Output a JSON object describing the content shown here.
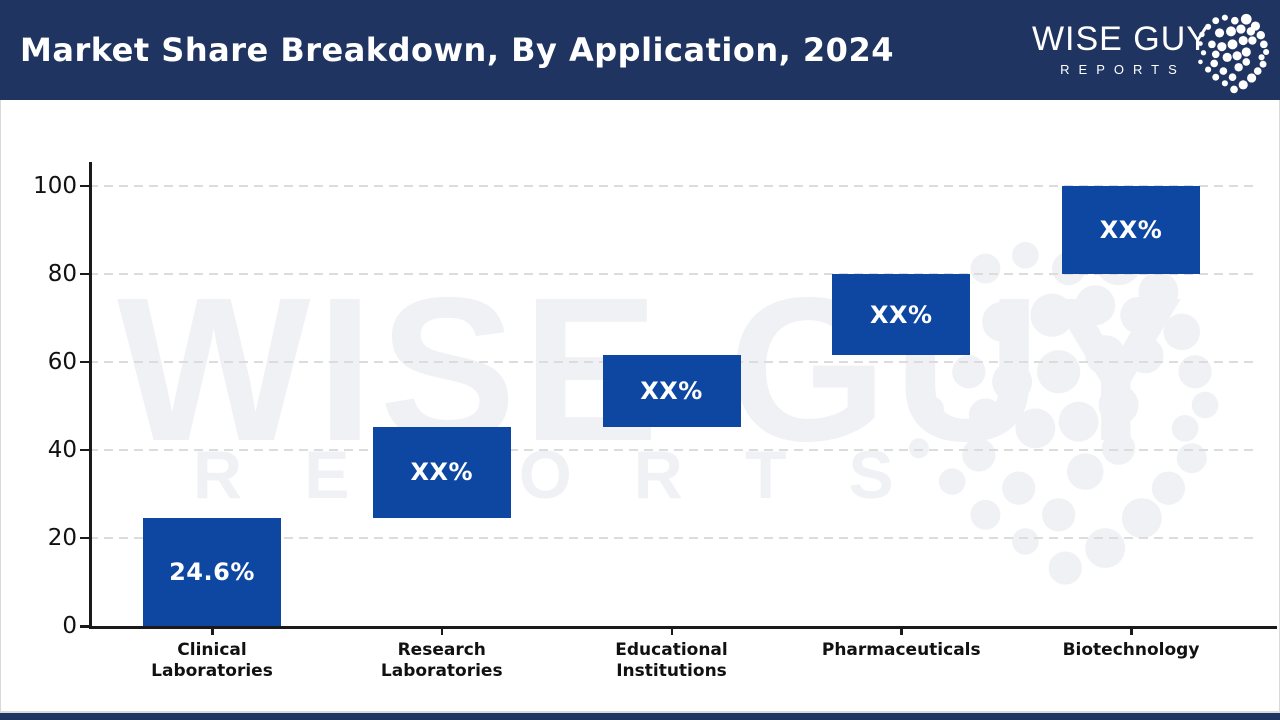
{
  "header": {
    "title": "Market Share Breakdown, By Application, 2024",
    "logo": {
      "line1": "WISE GUY",
      "line2": "REPORTS"
    }
  },
  "watermark": {
    "line1": "WISE GUY",
    "line2": "REPORTS"
  },
  "colors": {
    "header_bg": "#1f3460",
    "bar": "#0d47a1",
    "gridline": "#dcdcdc",
    "axis": "#1a1a1a",
    "watermark": "#f0f1f4",
    "title_text": "#ffffff",
    "bar_label_text": "#ffffff"
  },
  "chart_data": {
    "type": "bar",
    "variant": "floating-waterfall",
    "title": "Market Share Breakdown, By Application, 2024",
    "xlabel": "",
    "ylabel": "",
    "ylim": [
      0,
      105
    ],
    "yticks": [
      0,
      20,
      40,
      60,
      80,
      100
    ],
    "grid": "horizontal-dashed",
    "legend": "none",
    "categories": [
      "Clinical Laboratories",
      "Research Laboratories",
      "Educational Institutions",
      "Pharmaceuticals",
      "Biotechnology"
    ],
    "category_lines": [
      [
        "Clinical",
        "Laboratories"
      ],
      [
        "Research",
        "Laboratories"
      ],
      [
        "Educational",
        "Institutions"
      ],
      [
        "Pharmaceuticals"
      ],
      [
        "Biotechnology"
      ]
    ],
    "segments": [
      {
        "category": "Clinical Laboratories",
        "start": 0,
        "end": 24.6,
        "label": "24.6%"
      },
      {
        "category": "Research Laboratories",
        "start": 24.6,
        "end": 45.1,
        "label": "XX%"
      },
      {
        "category": "Educational Institutions",
        "start": 45.1,
        "end": 61.5,
        "label": "XX%"
      },
      {
        "category": "Pharmaceuticals",
        "start": 61.5,
        "end": 79.8,
        "label": "XX%"
      },
      {
        "category": "Biotechnology",
        "start": 79.8,
        "end": 100,
        "label": "XX%"
      }
    ]
  }
}
